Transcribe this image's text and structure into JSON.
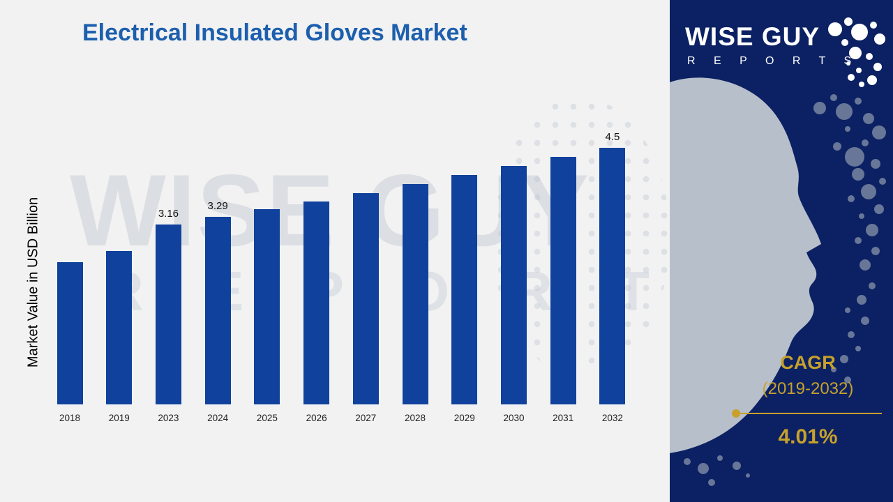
{
  "title": "Electrical Insulated Gloves Market",
  "y_axis_label": "Market Value in USD Billion",
  "watermark": {
    "line1": "WISE GUY",
    "line2": "R E P O R T S"
  },
  "brand": {
    "logo_line1": "WISE GUY",
    "logo_line2": "R E P O R T S"
  },
  "cagr": {
    "label": "CAGR",
    "range": "(2019-2032)",
    "value": "4.01%"
  },
  "colors": {
    "bar": "#10419c",
    "title": "#1d5fae",
    "panel": "#0b2163",
    "gold": "#c7a12b",
    "background": "#f2f2f2",
    "face_gray": "#b7bfcb"
  },
  "chart_data": {
    "type": "bar",
    "title": "Electrical Insulated Gloves Market",
    "xlabel": "",
    "ylabel": "Market Value in USD Billion",
    "unit": "USD Billion",
    "categories": [
      "2018",
      "2019",
      "2023",
      "2024",
      "2025",
      "2026",
      "2027",
      "2028",
      "2029",
      "2030",
      "2031",
      "2032"
    ],
    "values": [
      2.49,
      2.69,
      3.16,
      3.29,
      3.42,
      3.56,
      3.71,
      3.86,
      4.02,
      4.18,
      4.34,
      4.5
    ],
    "data_labels": {
      "2023": "3.16",
      "2024": "3.29",
      "2032": "4.5"
    },
    "ylim": [
      0,
      5
    ],
    "grid": false,
    "legend": false
  }
}
